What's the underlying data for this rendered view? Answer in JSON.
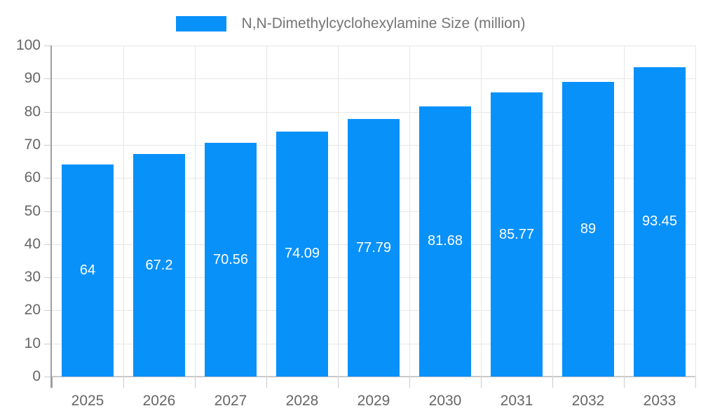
{
  "chart_data": {
    "type": "bar",
    "legend": {
      "label": "N,N-Dimethylcyclohexylamine Size (million)",
      "position": "top"
    },
    "categories": [
      "2025",
      "2026",
      "2027",
      "2028",
      "2029",
      "2030",
      "2031",
      "2032",
      "2033"
    ],
    "values": [
      64,
      67.2,
      70.56,
      74.09,
      77.79,
      81.68,
      85.77,
      89,
      93.45
    ],
    "value_labels": [
      "64",
      "67.2",
      "70.56",
      "74.09",
      "77.79",
      "81.68",
      "85.77",
      "89",
      "93.45"
    ],
    "xlabel": "",
    "ylabel": "",
    "ylim": [
      0,
      100
    ],
    "yticks": [
      0,
      10,
      20,
      30,
      40,
      50,
      60,
      70,
      80,
      90,
      100
    ],
    "grid": true,
    "colors": {
      "bar": "#0991fa",
      "value_label": "#ffffff",
      "axis_text": "#666666",
      "legend_text": "#757575",
      "gridline": "#e6e6e6",
      "y_axis_line": "#9e9e9e",
      "x_axis_line": "#c9c9c9"
    }
  }
}
